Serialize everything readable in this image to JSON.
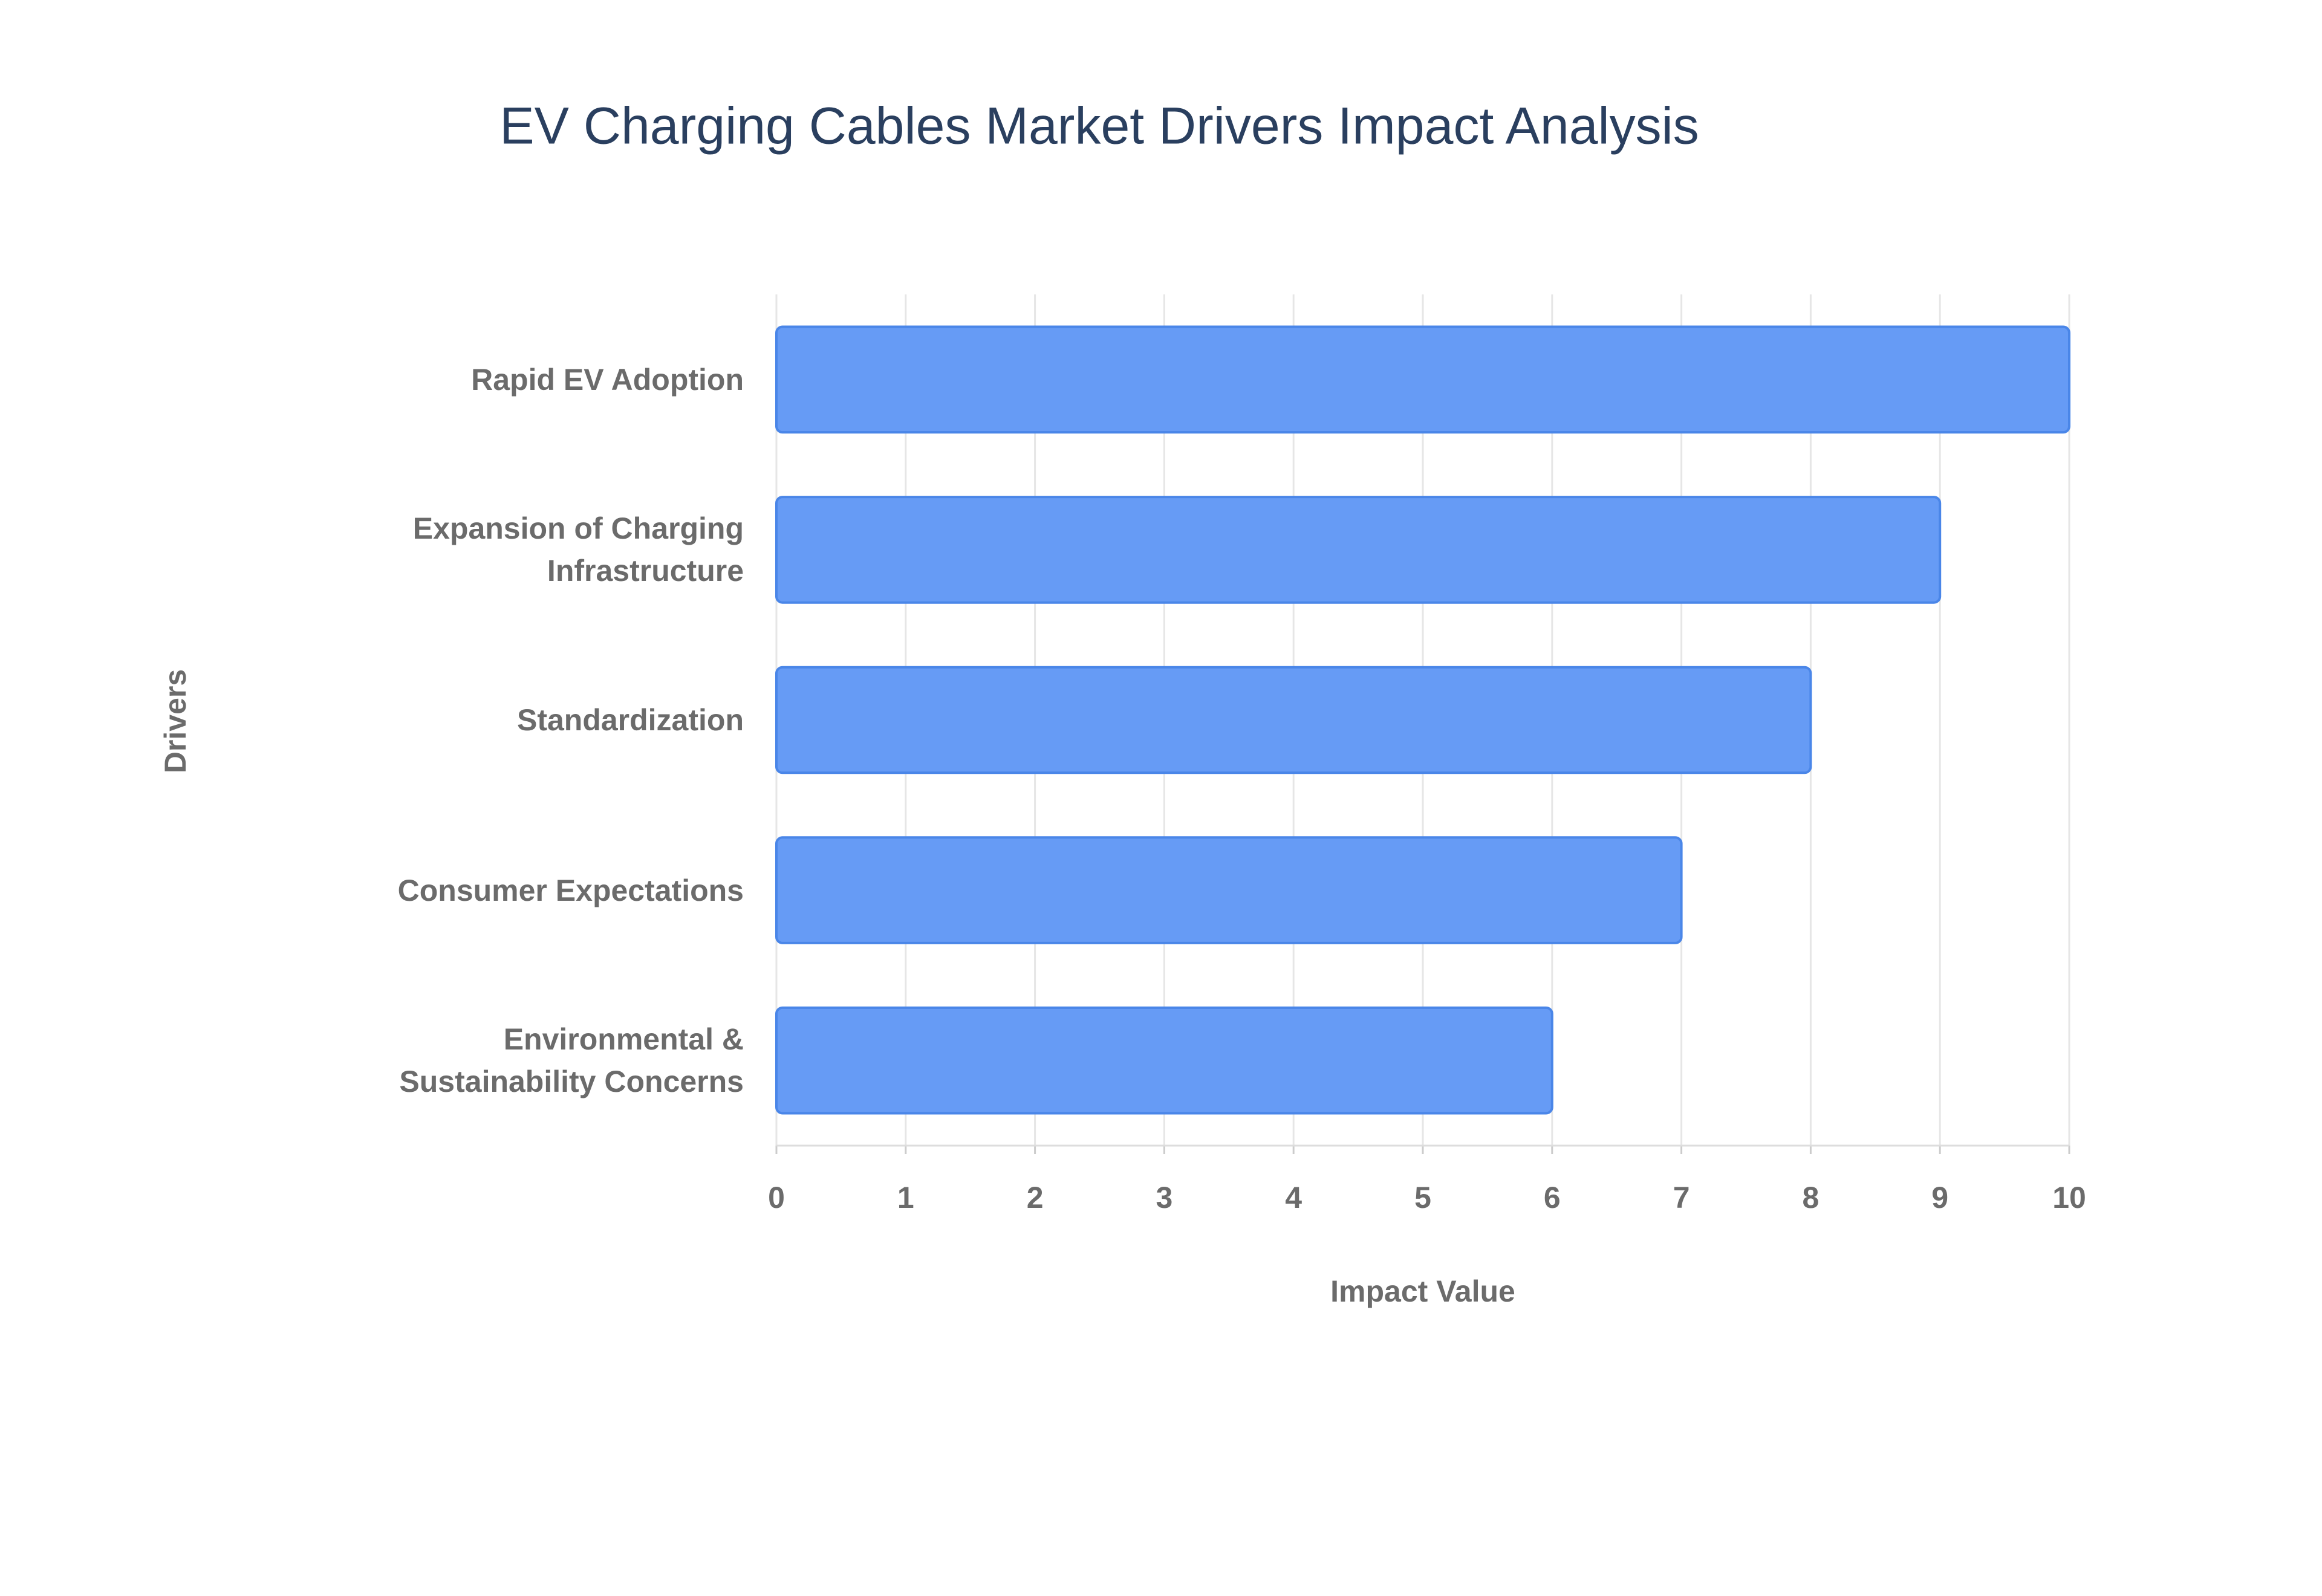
{
  "chart_data": {
    "type": "bar",
    "orientation": "horizontal",
    "title": "EV Charging Cables Market Drivers Impact Analysis",
    "x_label": "Impact Value",
    "y_label": "Drivers",
    "categories": [
      "Rapid EV Adoption",
      "Expansion of Charging Infrastructure",
      "Standardization",
      "Consumer Expectations",
      "Environmental & Sustainability Concerns"
    ],
    "values": [
      10,
      9,
      8,
      7,
      6
    ],
    "color": "#6399f5",
    "xlim": [
      0,
      10
    ],
    "xticks": [
      0,
      1,
      2,
      3,
      4,
      5,
      6,
      7,
      8,
      9,
      10
    ],
    "grid": true
  }
}
